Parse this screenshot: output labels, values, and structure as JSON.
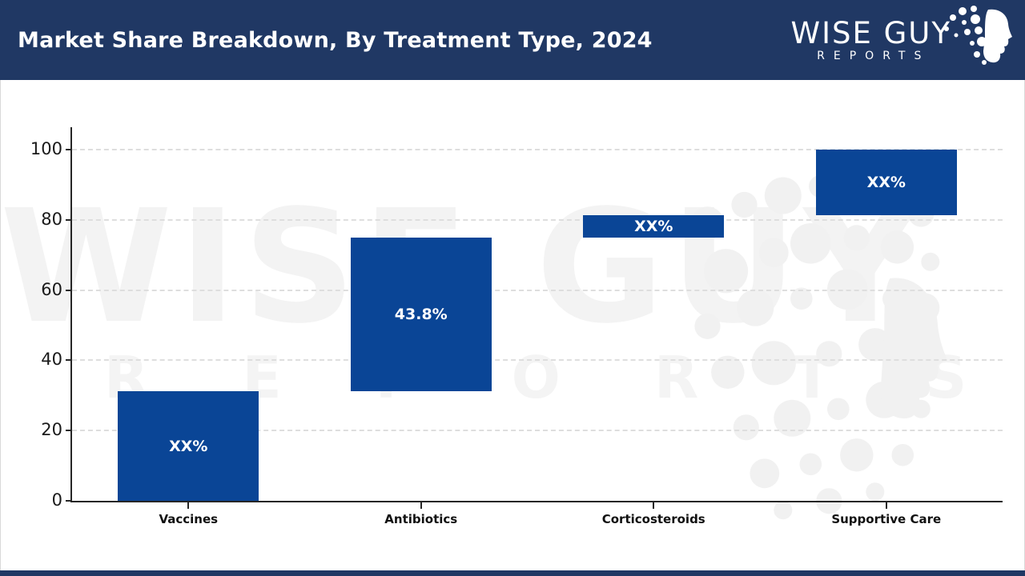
{
  "header": {
    "title": "Market Share Breakdown, By Treatment Type, 2024",
    "logo": {
      "line1": "WISE GUY",
      "line2": "REPORTS"
    }
  },
  "watermark": {
    "line1": "WISE GUY",
    "line2": "REPORTS"
  },
  "chart_data": {
    "type": "bar",
    "subtype": "waterfall",
    "title": "Market Share Breakdown, By Treatment Type, 2024",
    "categories": [
      "Vaccines",
      "Antibiotics",
      "Corticosteroids",
      "Supportive Care"
    ],
    "segments": [
      {
        "category": "Vaccines",
        "start": 0,
        "end": 31.2,
        "label": "XX%"
      },
      {
        "category": "Antibiotics",
        "start": 31.2,
        "end": 75.0,
        "label": "43.8%"
      },
      {
        "category": "Corticosteroids",
        "start": 75.0,
        "end": 81.3,
        "label": "XX%"
      },
      {
        "category": "Supportive Care",
        "start": 81.3,
        "end": 100,
        "label": "XX%"
      }
    ],
    "ylim": [
      0,
      100
    ],
    "yticks": [
      0,
      20,
      40,
      60,
      80,
      100
    ],
    "xlabel": "",
    "ylabel": "",
    "grid": true,
    "legend": false,
    "bar_color": "#0a4596",
    "bar_label_color": "#ffffff"
  },
  "colors": {
    "header_bg": "#203864",
    "footer_bg": "#203864",
    "bar": "#0a4596",
    "axis": "#262626",
    "gridline": "#dedede",
    "watermark": "#f3f3f3"
  }
}
